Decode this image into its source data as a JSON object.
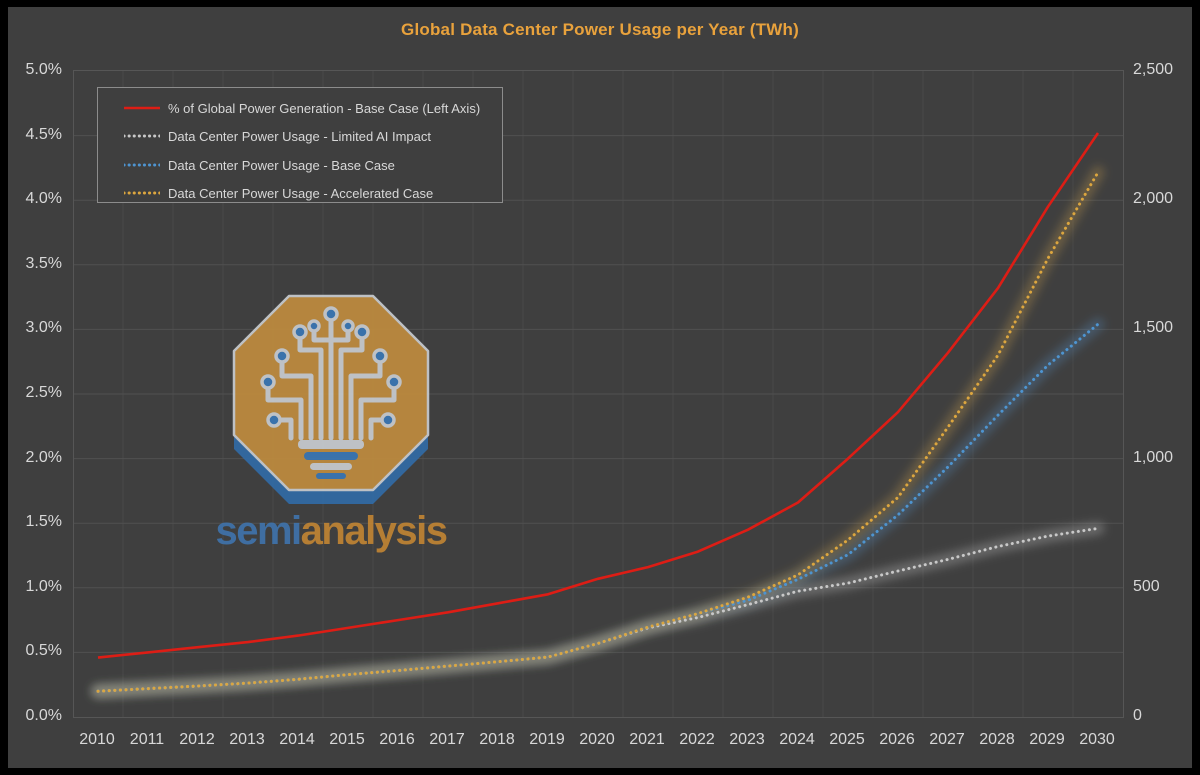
{
  "title": "Global Data Center Power Usage per Year (TWh)",
  "colors": {
    "background": "#3f3f3f",
    "frame": "#000000",
    "title": "#e9a23c",
    "tick_text": "#d8d8d8",
    "grid_vertical": "#484848",
    "grid_horizontal": "#515151",
    "plot_border": "#565656",
    "legend_border": "#8c8c8c"
  },
  "legend": {
    "items": [
      {
        "label": "% of Global Power Generation - Base Case (Left Axis)",
        "color": "#dd1d15",
        "style": "solid"
      },
      {
        "label": "Data Center Power Usage - Limited AI Impact",
        "color": "#c8c8c8",
        "style": "dotted"
      },
      {
        "label": "Data Center Power Usage - Base Case",
        "color": "#4e94d0",
        "style": "dotted"
      },
      {
        "label": "Data Center Power Usage - Accelerated Case",
        "color": "#dca63f",
        "style": "dotted"
      }
    ]
  },
  "logo": {
    "semi": "semi",
    "analysis": "analysis",
    "semi_color": "#3f73ab",
    "analysis_color": "#c08434",
    "octagon_fill": "#bf8c3e",
    "octagon_shadow": "#316ba6",
    "circuit_color": "#c9cdd1",
    "node_fill": "#3a77b5"
  },
  "chart_data": {
    "type": "line",
    "title": "Global Data Center Power Usage per Year (TWh)",
    "x": [
      2010,
      2011,
      2012,
      2013,
      2014,
      2015,
      2016,
      2017,
      2018,
      2019,
      2020,
      2021,
      2022,
      2023,
      2024,
      2025,
      2026,
      2027,
      2028,
      2029,
      2030
    ],
    "left_axis": {
      "unit": "% of global power generation",
      "min": 0,
      "max": 5,
      "ticks": [
        "5.0%",
        "4.5%",
        "4.0%",
        "3.5%",
        "3.0%",
        "2.5%",
        "2.0%",
        "1.5%",
        "1.0%",
        "0.5%",
        "0.0%"
      ]
    },
    "right_axis": {
      "unit": "TWh",
      "min": 0,
      "max": 2500,
      "ticks": [
        "2,500",
        "2,000",
        "1,500",
        "1,000",
        "500",
        "0"
      ]
    },
    "grid": true,
    "legend_position": "top-left",
    "series": [
      {
        "name": "Data Center Power Usage - Limited AI Impact",
        "axis": "right",
        "style": "dotted",
        "color": "#c8c8c8",
        "glow": "#e8e8e8",
        "values": [
          100,
          110,
          120,
          131,
          146,
          164,
          180,
          197,
          214,
          232,
          285,
          345,
          385,
          435,
          487,
          518,
          565,
          610,
          660,
          700,
          730
        ]
      },
      {
        "name": "Data Center Power Usage - Base Case",
        "axis": "right",
        "style": "dotted",
        "color": "#4e94d0",
        "glow": "#5ba0de",
        "values": [
          100,
          110,
          120,
          131,
          146,
          164,
          180,
          197,
          214,
          232,
          285,
          348,
          400,
          452,
          533,
          628,
          782,
          968,
          1168,
          1362,
          1520
        ]
      },
      {
        "name": "Data Center Power Usage - Accelerated Case",
        "axis": "right",
        "style": "dotted",
        "color": "#dca63f",
        "glow": "#e8b54d",
        "values": [
          100,
          110,
          120,
          131,
          146,
          164,
          180,
          197,
          214,
          232,
          285,
          348,
          400,
          464,
          550,
          685,
          850,
          1122,
          1400,
          1775,
          2108
        ]
      },
      {
        "name": "% of Global Power Generation - Base Case (Left Axis)",
        "axis": "left",
        "style": "solid",
        "color": "#dd1d15",
        "glow": null,
        "values": [
          0.46,
          0.5,
          0.54,
          0.58,
          0.63,
          0.69,
          0.75,
          0.81,
          0.88,
          0.95,
          1.07,
          1.16,
          1.28,
          1.45,
          1.66,
          2.0,
          2.36,
          2.82,
          3.32,
          3.95,
          4.52
        ]
      }
    ]
  }
}
